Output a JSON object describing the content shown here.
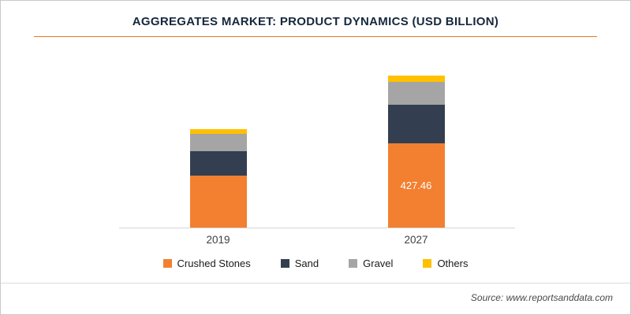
{
  "title": "AGGREGATES MARKET: PRODUCT DYNAMICS (USD BILLION)",
  "source": "Source: www.reportsanddata.com",
  "accent_color": "#e87722",
  "chart_data": {
    "type": "bar",
    "stacked": true,
    "title": "AGGREGATES MARKET: PRODUCT DYNAMICS (USD BILLION)",
    "categories": [
      "2019",
      "2027"
    ],
    "series": [
      {
        "name": "Crushed Stones",
        "color": "#f28030",
        "values": [
          263,
          427.46
        ]
      },
      {
        "name": "Sand",
        "color": "#333f50",
        "values": [
          127,
          197
        ]
      },
      {
        "name": "Gravel",
        "color": "#a5a5a5",
        "values": [
          85,
          115
        ]
      },
      {
        "name": "Others",
        "color": "#ffc000",
        "values": [
          25,
          33
        ]
      }
    ],
    "data_labels": [
      {
        "category": "2027",
        "series": "Crushed Stones",
        "label": "427.46"
      }
    ],
    "xlabel": "",
    "ylabel": "",
    "ylim": [
      0,
      800
    ],
    "grid": false,
    "legend_position": "bottom"
  }
}
